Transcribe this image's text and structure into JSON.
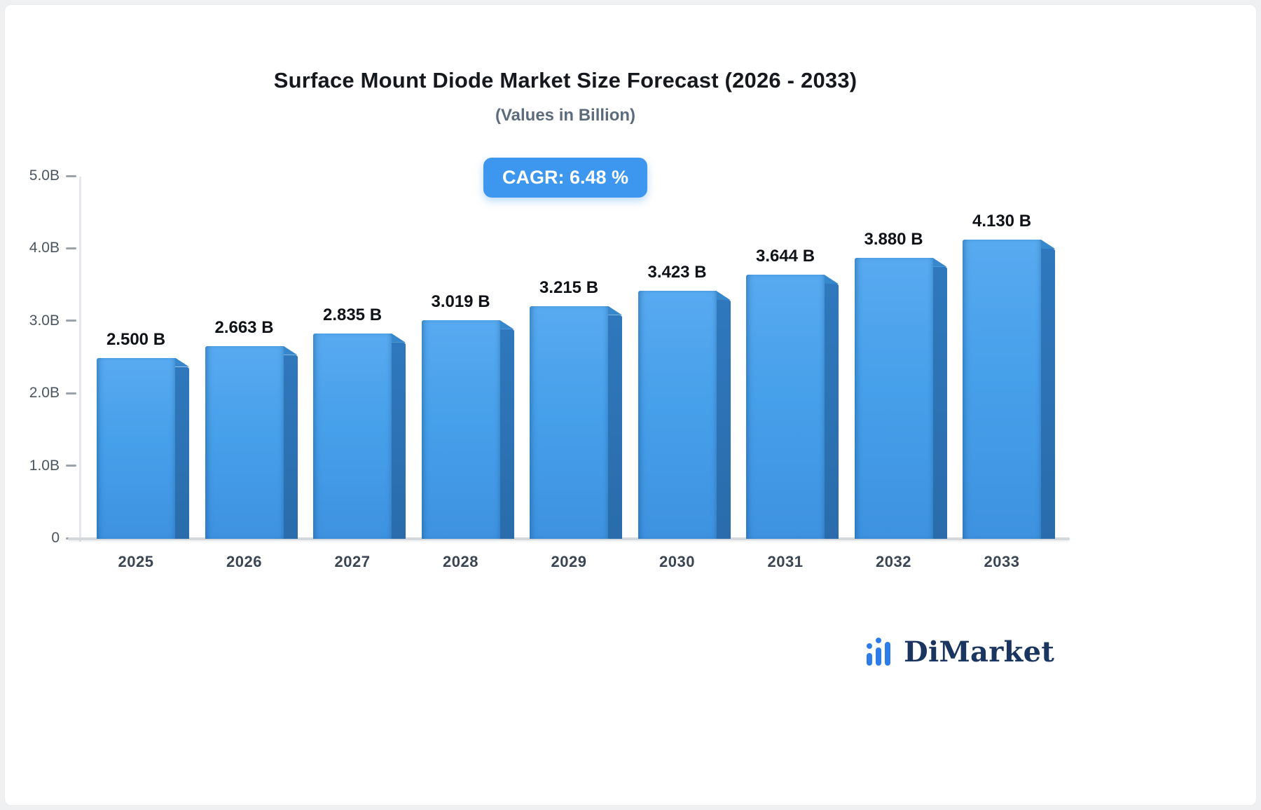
{
  "header": {
    "title": "Surface Mount Diode Market Size Forecast (2026 - 2033)",
    "subtitle": "(Values in Billion)",
    "cagr_badge": "CAGR: 6.48 %"
  },
  "chart_data": {
    "type": "bar",
    "title": "Surface Mount Diode Market Size Forecast (2026 - 2033)",
    "subtitle": "(Values in Billion)",
    "categories": [
      "2025",
      "2026",
      "2027",
      "2028",
      "2029",
      "2030",
      "2031",
      "2032",
      "2033"
    ],
    "values": [
      2.5,
      2.663,
      2.835,
      3.019,
      3.215,
      3.423,
      3.644,
      3.88,
      4.13
    ],
    "value_labels": [
      "2.500 B",
      "2.663 B",
      "2.835 B",
      "3.019 B",
      "3.215 B",
      "3.423 B",
      "3.644 B",
      "3.880 B",
      "4.130 B"
    ],
    "xlabel": "",
    "ylabel": "",
    "ylim": [
      0,
      5
    ],
    "ytick_values": [
      0,
      1,
      2,
      3,
      4,
      5
    ],
    "ytick_labels": [
      "0",
      "1.0B",
      "2.0B",
      "3.0B",
      "4.0B",
      "5.0B"
    ],
    "grid": "off",
    "legend": "none",
    "annotations": [
      "CAGR: 6.48 %"
    ],
    "colors": {
      "bar_front": "#47a0ea",
      "bar_side": "#2d73b4",
      "bar_top": "#3787cd",
      "badge": "#3e97ee",
      "axis": "#d3d8dc"
    }
  },
  "footer": {
    "brand": "DiMarket",
    "logo_color": "#2d7ce8"
  }
}
